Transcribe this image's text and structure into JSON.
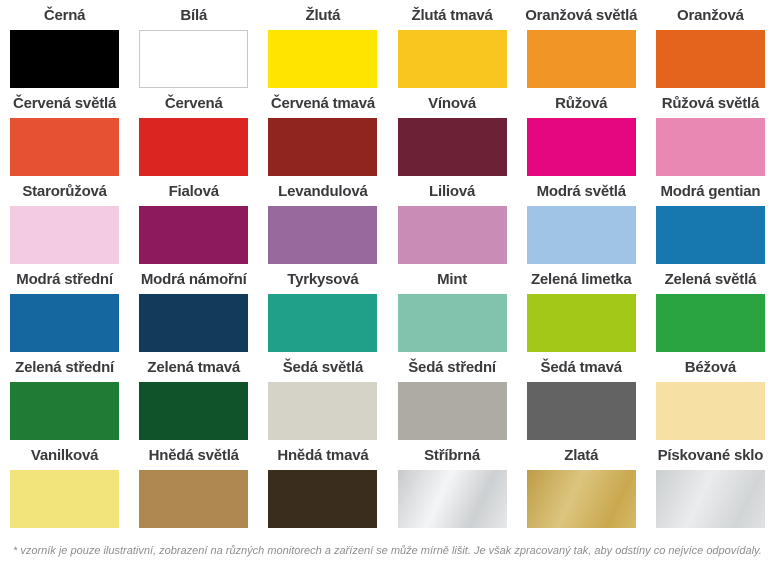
{
  "chart_data": {
    "type": "table",
    "description": "Color swatch sample chart (vzorník barev), 6 columns x 6 rows, Czech color names above each swatch",
    "columns": 6,
    "rows": 6,
    "items": [
      {
        "label": "Černá",
        "color": "#000000"
      },
      {
        "label": "Bílá",
        "color": "#ffffff",
        "border": "#c8c8c8"
      },
      {
        "label": "Žlutá",
        "color": "#fde500"
      },
      {
        "label": "Žlutá tmavá",
        "color": "#f8c61e"
      },
      {
        "label": "Oranžová světlá",
        "color": "#f09526"
      },
      {
        "label": "Oranžová",
        "color": "#e4631d"
      },
      {
        "label": "Červená světlá",
        "color": "#e45231"
      },
      {
        "label": "Červená",
        "color": "#db2521"
      },
      {
        "label": "Červená tmavá",
        "color": "#90241f"
      },
      {
        "label": "Vínová",
        "color": "#6c2136"
      },
      {
        "label": "Růžová",
        "color": "#e5077e"
      },
      {
        "label": "Růžová světlá",
        "color": "#e989b3"
      },
      {
        "label": "Starorůžová",
        "color": "#f4cce1"
      },
      {
        "label": "Fialová",
        "color": "#8e1a5e"
      },
      {
        "label": "Levandulová",
        "color": "#98699c"
      },
      {
        "label": "Liliová",
        "color": "#c88cb6"
      },
      {
        "label": "Modrá světlá",
        "color": "#9fc4e5"
      },
      {
        "label": "Modrá gentian",
        "color": "#1778b0"
      },
      {
        "label": "Modrá střední",
        "color": "#15689f"
      },
      {
        "label": "Modrá námořní",
        "color": "#113a5b"
      },
      {
        "label": "Tyrkysová",
        "color": "#20a089"
      },
      {
        "label": "Mint",
        "color": "#80c4ae"
      },
      {
        "label": "Zelená limetka",
        "color": "#a2c918"
      },
      {
        "label": "Zelená světlá",
        "color": "#2aa441"
      },
      {
        "label": "Zelená střední",
        "color": "#1f7c34"
      },
      {
        "label": "Zelená tmavá",
        "color": "#105229"
      },
      {
        "label": "Šedá světlá",
        "color": "#d5d2c8"
      },
      {
        "label": "Šedá střední",
        "color": "#adaba4"
      },
      {
        "label": "Šedá tmavá",
        "color": "#636363"
      },
      {
        "label": "Béžová",
        "color": "#f6e0a4"
      },
      {
        "label": "Vanilková",
        "color": "#f2e37b"
      },
      {
        "label": "Hnědá světlá",
        "color": "#af8851"
      },
      {
        "label": "Hnědá tmavá",
        "color": "#3a2d1d"
      },
      {
        "label": "Stříbrná",
        "color": "linear-gradient(115deg, #c7cacc 0%, #f4f5f6 40%, #cdd0d2 72%, #e6e8e9 100%)"
      },
      {
        "label": "Zlatá",
        "color": "linear-gradient(115deg, #bd9c47 0%, #ddc57f 42%, #c9a84f 78%, #d6ba67 100%)"
      },
      {
        "label": "Pískované sklo",
        "color": "linear-gradient(115deg, #cbced0 0%, #eaeced 42%, #d2d5d6 78%, #e0e2e3 100%)"
      }
    ]
  },
  "footnote": {
    "text": "* vzorník je pouze ilustrativní, zobrazení na různých monitorech a zařízení se může mírně lišit. Je však zpracovaný tak, aby odstíny co nejvíce odpovídaly."
  }
}
